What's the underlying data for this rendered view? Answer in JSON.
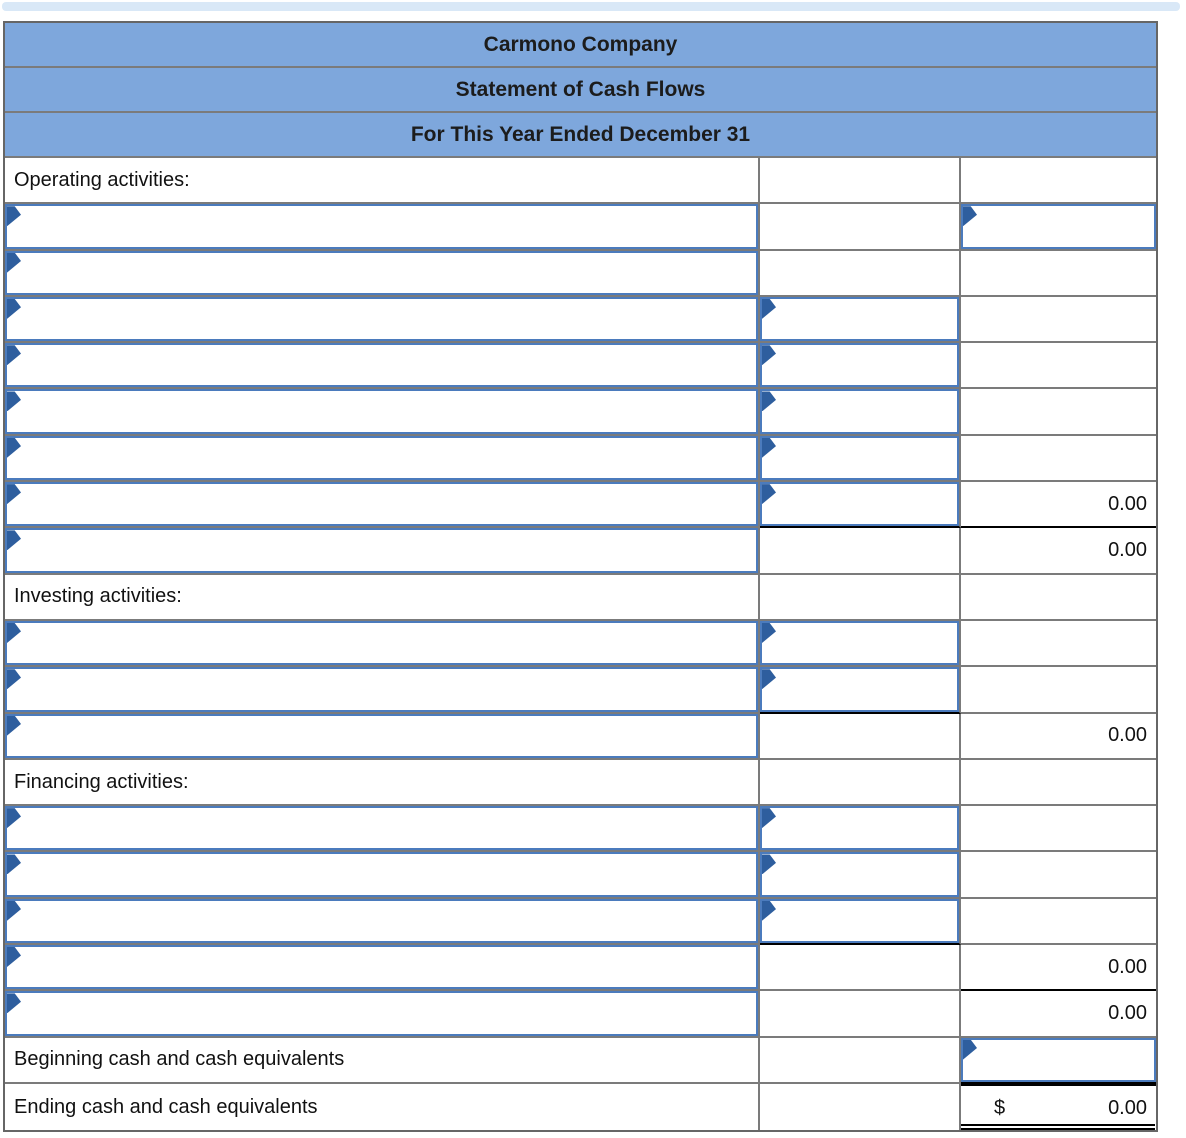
{
  "table": {
    "headers": [
      "Carmono Company",
      "Statement of Cash Flows",
      "For This Year Ended December 31"
    ]
  },
  "rows": [
    {
      "label": "Operating activities:"
    },
    {},
    {},
    {},
    {},
    {},
    {},
    {
      "value": "0.00"
    },
    {
      "value": "0.00"
    },
    {
      "label": "Investing activities:"
    },
    {},
    {},
    {
      "value": "0.00"
    },
    {
      "label": "Financing activities:"
    },
    {},
    {},
    {},
    {
      "value": "0.00"
    },
    {
      "value": "0.00"
    },
    {
      "label": "Beginning cash and cash equivalents"
    },
    {
      "label": "Ending cash and cash equivalents",
      "currency": "$",
      "value": "0.00"
    }
  ],
  "icons": {
    "dropdownMarker": "▶"
  },
  "colors": {
    "headerFill": "#7EA7DC",
    "topStrip": "#D9E8F7",
    "grid": "#7B7B7B",
    "outerBorder": "#666666",
    "inputBorder": "#4B7BBD",
    "markerBlue": "#2E5E9E",
    "ruleBlack": "#000000",
    "textColor": "#000000"
  }
}
